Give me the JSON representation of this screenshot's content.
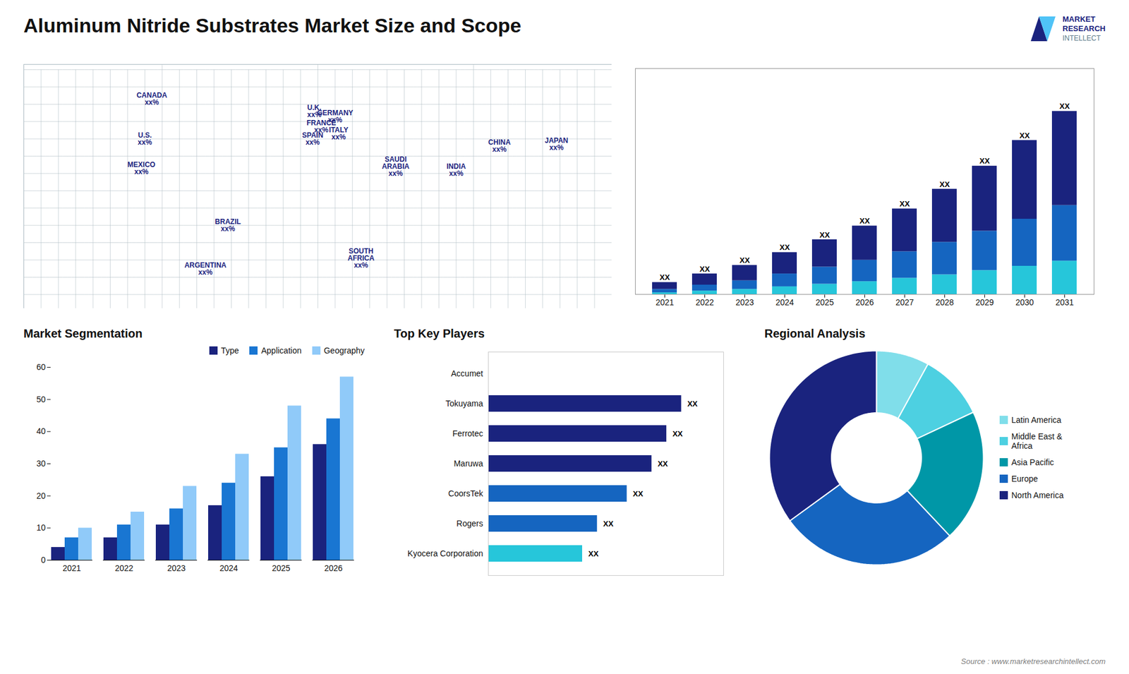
{
  "title": "Aluminum Nitride Substrates Market Size and Scope",
  "logo": [
    "MARKET",
    "RESEARCH",
    "INTELLECT"
  ],
  "caption": "Source : www.marketresearchintellect.com",
  "chart_data": [
    {
      "type": "map",
      "xlim": [
        -170,
        170
      ],
      "ylim": [
        -58,
        83
      ],
      "tick_labels": false,
      "labels": [
        {
          "text": "U.S.\nxx%",
          "lon": -100,
          "lat": 40
        },
        {
          "text": "CANADA\nxx%",
          "lon": -96,
          "lat": 63
        },
        {
          "text": "MEXICO\nxx%",
          "lon": -102,
          "lat": 23
        },
        {
          "text": "BRAZIL\nxx%",
          "lon": -52,
          "lat": -10
        },
        {
          "text": "ARGENTINA\nxx%",
          "lon": -65,
          "lat": -35
        },
        {
          "text": "U.K.\nxx%",
          "lon": -2,
          "lat": 56
        },
        {
          "text": "FRANCE\nxx%",
          "lon": 2,
          "lat": 47
        },
        {
          "text": "GERMANY\nxx%",
          "lon": 10,
          "lat": 53
        },
        {
          "text": "SPAIN\nxx%",
          "lon": -3,
          "lat": 40
        },
        {
          "text": "ITALY\nxx%",
          "lon": 12,
          "lat": 43
        },
        {
          "text": "SAUDI\nARABIA\nxx%",
          "lon": 45,
          "lat": 24
        },
        {
          "text": "SOUTH\nAFRICA\nxx%",
          "lon": 25,
          "lat": -29
        },
        {
          "text": "CHINA\nxx%",
          "lon": 105,
          "lat": 36
        },
        {
          "text": "JAPAN\nxx%",
          "lon": 138,
          "lat": 37
        },
        {
          "text": "INDIA\nxx%",
          "lon": 80,
          "lat": 22
        }
      ]
    },
    {
      "type": "bar",
      "stacked": true,
      "categories": [
        "2021",
        "2022",
        "2023",
        "2024",
        "2025",
        "2026",
        "2027",
        "2028",
        "2029",
        "2030",
        "2031"
      ],
      "series": [
        {
          "color": "#26c6da",
          "values": [
            0.2,
            0.4,
            0.6,
            0.9,
            1.2,
            1.5,
            1.9,
            2.3,
            2.8,
            3.3,
            3.9
          ]
        },
        {
          "color": "#1565c0",
          "values": [
            0.4,
            0.7,
            1.0,
            1.5,
            2.0,
            2.5,
            3.1,
            3.8,
            4.6,
            5.5,
            6.5
          ]
        },
        {
          "color": "#1a237e",
          "values": [
            0.8,
            1.3,
            1.8,
            2.5,
            3.2,
            4.0,
            5.0,
            6.2,
            7.6,
            9.2,
            11.0
          ],
          "value_labels": [
            "XX",
            "XX",
            "XX",
            "XX",
            "XX",
            "XX",
            "XX",
            "XX",
            "XX",
            "XX",
            "XX"
          ]
        }
      ],
      "ylim": [
        0,
        26.4
      ],
      "tick_labels": "x",
      "grid": false
    },
    {
      "type": "bar",
      "title": "Market Segmentation",
      "categories": [
        "2021",
        "2022",
        "2023",
        "2024",
        "2025",
        "2026"
      ],
      "series": [
        {
          "name": "Type",
          "color": "#1a237e",
          "values": [
            4,
            7,
            11,
            17,
            26,
            36
          ]
        },
        {
          "name": "Application",
          "color": "#1976d2",
          "values": [
            7,
            11,
            16,
            24,
            35,
            44
          ]
        },
        {
          "name": "Geography",
          "color": "#90caf9",
          "values": [
            10,
            15,
            23,
            33,
            48,
            57
          ]
        }
      ],
      "ylim": [
        0,
        60
      ],
      "yticks": [
        0,
        10,
        20,
        30,
        40,
        50,
        60
      ],
      "legend": "top",
      "grid": false
    },
    {
      "type": "bar",
      "orientation": "horizontal",
      "title": "Top Key Players",
      "categories": [
        "Accumet",
        "Tokuyama",
        "Ferrotec",
        "Maruwa",
        "CoorsTek",
        "Rogers",
        "Kyocera Corporation"
      ],
      "values": [
        0,
        78,
        72,
        66,
        56,
        44,
        38
      ],
      "value_labels": [
        null,
        "XX",
        "XX",
        "XX",
        "XX",
        "XX",
        "XX"
      ],
      "colors": [
        "#ffffff",
        "#1a237e",
        "#1a237e",
        "#1a237e",
        "#1565c0",
        "#1565c0",
        "#26c6da"
      ],
      "xlim": [
        0,
        95
      ],
      "tick_labels": "y",
      "grid": false
    },
    {
      "type": "pie",
      "title": "Regional Analysis",
      "categories": [
        "Latin America",
        "Middle East &\nAfrica",
        "Asia Pacific",
        "Europe",
        "North America"
      ],
      "values": [
        8,
        10,
        20,
        27,
        35
      ],
      "colors": [
        "#80deea",
        "#4dd0e1",
        "#0097a7",
        "#1565c0",
        "#1a237e"
      ],
      "legend": "right"
    }
  ]
}
